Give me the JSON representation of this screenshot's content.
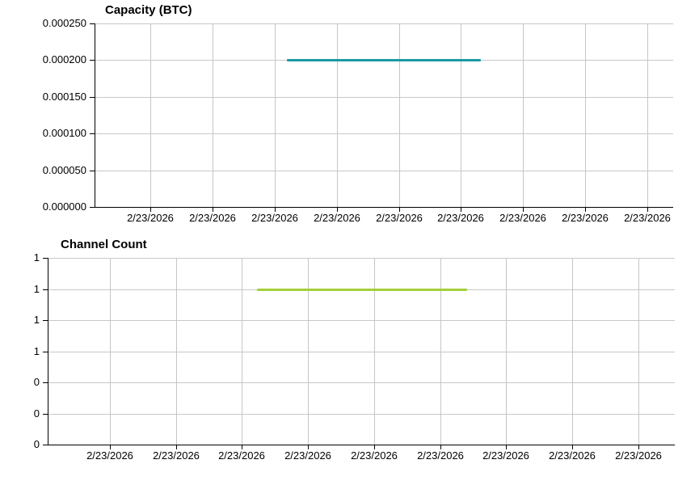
{
  "page": {
    "background_color": "#FFFFFF",
    "axis_color": "#000000",
    "gridline_color": "#C8C8C8",
    "text_color": "#000000"
  },
  "chart_data": [
    {
      "type": "line",
      "title": "Capacity (BTC)",
      "xlabel": "",
      "ylabel": "",
      "ylim": [
        0,
        0.00025
      ],
      "grid": true,
      "legend": false,
      "y_tick_labels": [
        "0.000250",
        "0.000200",
        "0.000150",
        "0.000100",
        "0.000050",
        "0.000000"
      ],
      "x_tick_labels": [
        "2/23/2026",
        "2/23/2026",
        "2/23/2026",
        "2/23/2026",
        "2/23/2026",
        "2/23/2026",
        "2/23/2026",
        "2/23/2026",
        "2/23/2026"
      ],
      "series": [
        {
          "name": "Capacity (BTC)",
          "color": "#1A9AA0",
          "value": 0.0002,
          "shape": "horizontal-segment",
          "y_fraction_from_top": 0.2,
          "x_span_fraction": [
            0.332,
            0.668
          ]
        }
      ]
    },
    {
      "type": "line",
      "title": "Channel Count",
      "xlabel": "",
      "ylabel": "",
      "ylim": [
        0,
        1.2
      ],
      "grid": true,
      "legend": false,
      "y_tick_labels": [
        "1",
        "1",
        "1",
        "1",
        "0",
        "0",
        "0"
      ],
      "x_tick_labels": [
        "2/23/2026",
        "2/23/2026",
        "2/23/2026",
        "2/23/2026",
        "2/23/2026",
        "2/23/2026",
        "2/23/2026",
        "2/23/2026",
        "2/23/2026"
      ],
      "series": [
        {
          "name": "Channel Count",
          "color": "#A3D138",
          "value": 1,
          "shape": "horizontal-segment",
          "y_fraction_from_top": 0.1667,
          "x_span_fraction": [
            0.334,
            0.669
          ]
        }
      ]
    }
  ]
}
